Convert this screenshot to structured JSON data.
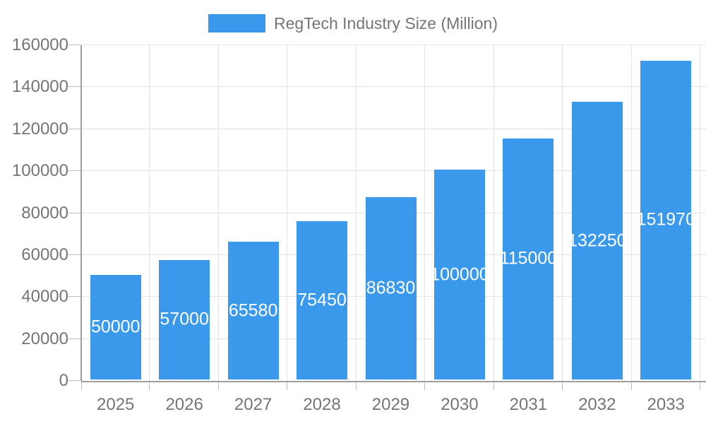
{
  "chart_data": {
    "type": "bar",
    "title": "RegTech Industry Size (Million)",
    "categories": [
      "2025",
      "2026",
      "2027",
      "2028",
      "2029",
      "2030",
      "2031",
      "2032",
      "2033"
    ],
    "values": [
      50000,
      57000,
      65580,
      75450,
      86830,
      100000,
      115000,
      132250,
      151970
    ],
    "value_labels": [
      "50000",
      "57000",
      "65580",
      "75450",
      "86830",
      "100000",
      "115000",
      "132250",
      "151970"
    ],
    "xlabel": "",
    "ylabel": "",
    "ylim": [
      0,
      160000
    ],
    "ytick_interval": 20000,
    "ytick_labels": [
      "0",
      "20000",
      "40000",
      "60000",
      "80000",
      "100000",
      "120000",
      "140000",
      "160000"
    ],
    "legend_position": "top",
    "grid": "horizontal-and-vertical",
    "colors": {
      "bar": "#3b99ec",
      "value_label": "#ffffff",
      "axis_text": "#757575",
      "grid_line": "#e3e3e3",
      "axis_line": "#9e9e9e",
      "tick": "#bdbdbd",
      "background": "#ffffff"
    }
  }
}
